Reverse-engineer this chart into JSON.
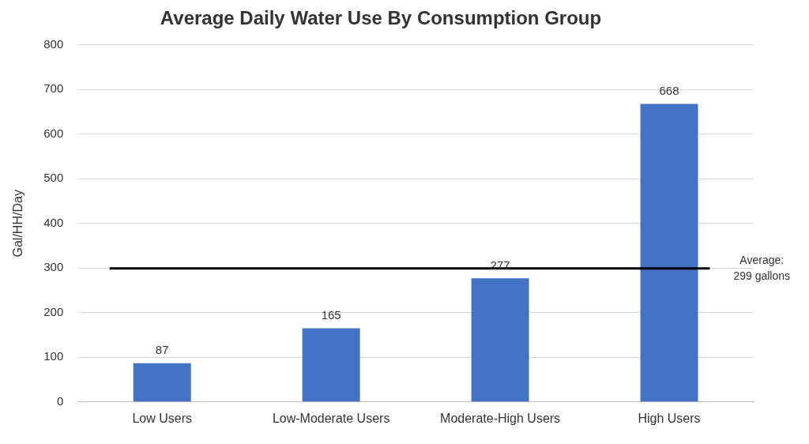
{
  "chart_data": {
    "type": "bar",
    "title": "Average Daily Water Use By Consumption Group",
    "ylabel": "Gal/HH/Day",
    "categories": [
      "Low Users",
      "Low-Moderate Users",
      "Moderate-High Users",
      "High Users"
    ],
    "values": [
      87,
      165,
      277,
      668
    ],
    "color": "#4472c4",
    "ylim": [
      0,
      800
    ],
    "yticks": [
      0,
      100,
      200,
      300,
      400,
      500,
      600,
      700,
      800
    ],
    "grid": "y",
    "data_labels": true,
    "ref_lines": [
      {
        "axis": "y",
        "value": 299,
        "label": "Average: 299 gallons",
        "color": "#000000"
      }
    ]
  }
}
